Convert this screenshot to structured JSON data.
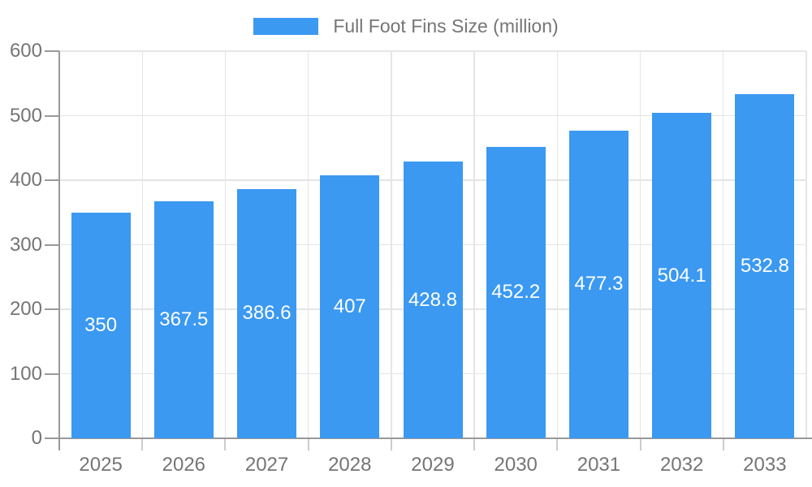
{
  "colors": {
    "bar": "#3B99F1",
    "grid": "#E5E5E5",
    "axis": "#999999",
    "minor_tick": "#CCCCCC",
    "axis_label": "#757575",
    "bar_label": "#FFFFFF",
    "background": "#FFFFFF"
  },
  "chart_data": {
    "type": "bar",
    "title": "",
    "series_name": "Full Foot Fins Size (million)",
    "categories": [
      "2025",
      "2026",
      "2027",
      "2028",
      "2029",
      "2030",
      "2031",
      "2032",
      "2033"
    ],
    "values": [
      350,
      367.5,
      386.6,
      407,
      428.8,
      452.2,
      477.3,
      504.1,
      532.8
    ],
    "value_labels": [
      "350",
      "367.5",
      "386.6",
      "407",
      "428.8",
      "452.2",
      "477.3",
      "504.1",
      "532.8"
    ],
    "xlabel": "",
    "ylabel": "",
    "ylim": [
      0,
      600
    ],
    "yticks": [
      0,
      100,
      200,
      300,
      400,
      500,
      600
    ],
    "grid": true,
    "legend_position": "top-center",
    "value_label_position": "inside-center"
  }
}
